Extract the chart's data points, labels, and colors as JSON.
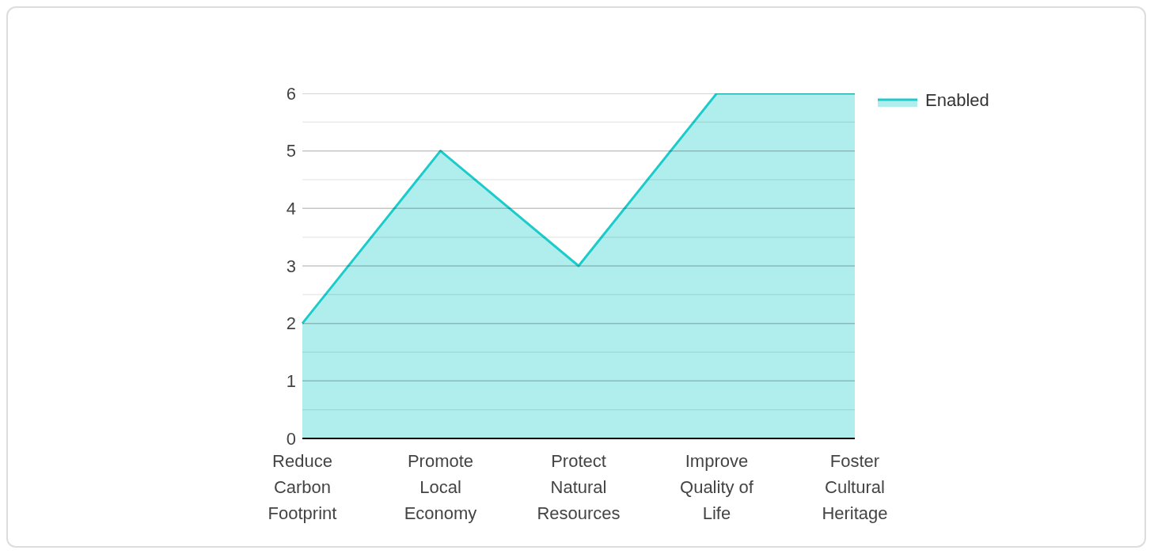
{
  "chart_data": {
    "type": "area",
    "categories": [
      "Reduce Carbon Footprint",
      "Promote Local Economy",
      "Protect Natural Resources",
      "Improve Quality of Life",
      "Foster Cultural Heritage"
    ],
    "series": [
      {
        "name": "Enabled",
        "color": "#1ecbcb",
        "values": [
          2,
          5,
          3,
          6,
          6
        ]
      }
    ],
    "ylim": [
      0,
      6
    ],
    "yticks": [
      0,
      {
        "value": 0.5,
        "label": null
      },
      1,
      {
        "value": 1.5,
        "label": null
      },
      2,
      {
        "value": 2.5,
        "label": null
      },
      3,
      {
        "value": 3.5,
        "label": null
      },
      4,
      {
        "value": 4.5,
        "label": null
      },
      5,
      {
        "value": 5.5,
        "label": null
      },
      6
    ],
    "grid": "y",
    "legend": "top right"
  }
}
